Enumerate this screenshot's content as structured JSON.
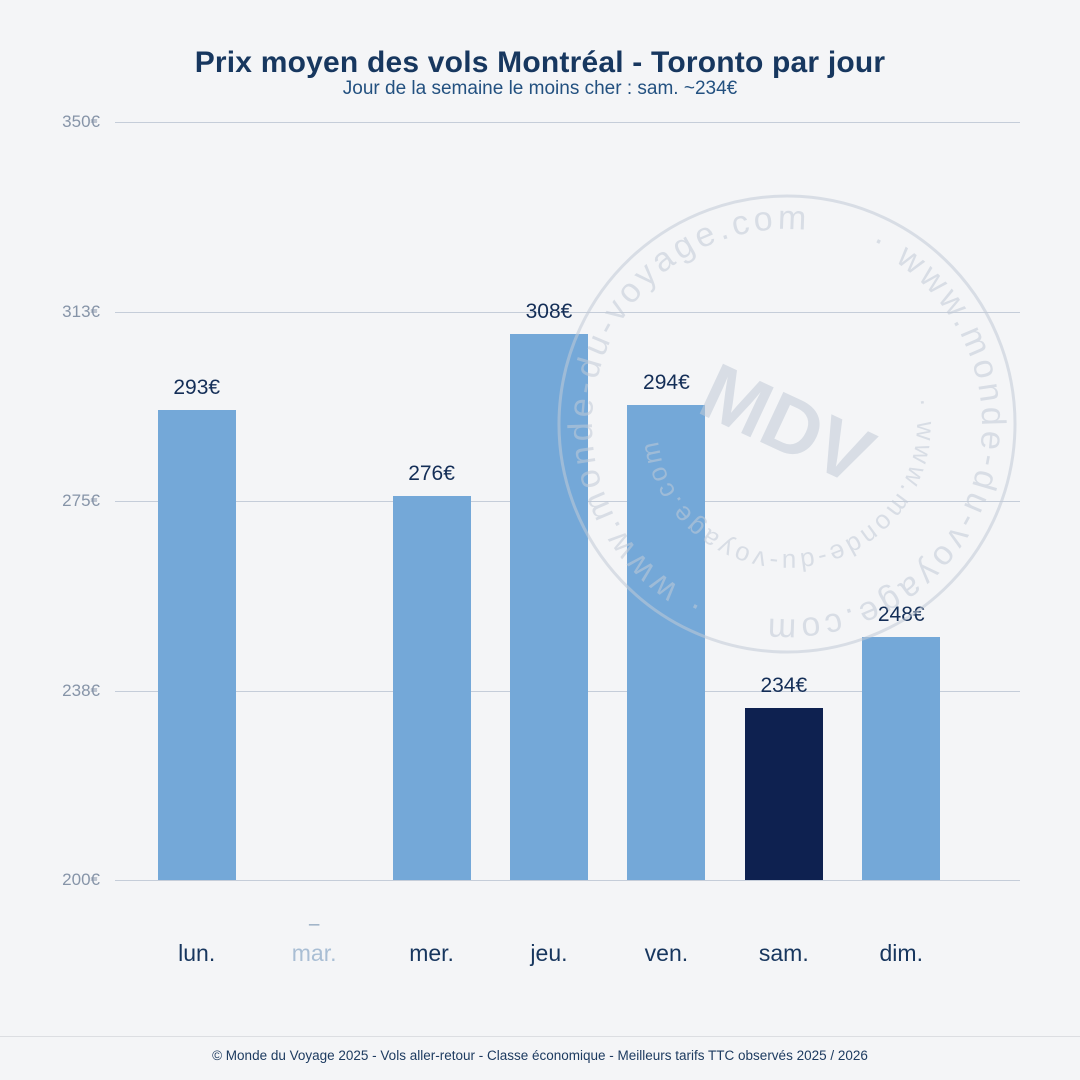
{
  "title": "Prix moyen des vols Montréal - Toronto par jour",
  "subtitle": "Jour de la semaine le moins cher : sam. ~234€",
  "footer": "© Monde du Voyage 2025 - Vols aller-retour - Classe économique - Meilleurs tarifs TTC observés 2025 / 2026",
  "watermark": {
    "ring_text": "· www.monde-du-voyage.com ",
    "center_text": "MDV"
  },
  "colors": {
    "background": "#f4f5f7",
    "bar": "#74a8d8",
    "bar_highlight": "#0e2150",
    "title": "#17375f",
    "grid": "#c5cdd9",
    "axis_label": "#8694a8",
    "muted_label": "#a9bed4"
  },
  "chart_data": {
    "type": "bar",
    "title": "Prix moyen des vols Montréal - Toronto par jour",
    "subtitle": "Jour de la semaine le moins cher : sam. ~234€",
    "categories": [
      "lun.",
      "mar.",
      "mer.",
      "jeu.",
      "ven.",
      "sam.",
      "dim."
    ],
    "values": [
      293,
      null,
      276,
      308,
      294,
      234,
      248
    ],
    "labels": [
      "293€",
      "–",
      "276€",
      "308€",
      "294€",
      "234€",
      "248€"
    ],
    "highlight_index": 5,
    "xlabel": "",
    "ylabel": "",
    "ylim": [
      200,
      350
    ],
    "yticks": [
      200,
      238,
      275,
      313,
      350
    ],
    "ytick_labels": [
      "200€",
      "238€",
      "275€",
      "313€",
      "350€"
    ],
    "grid": true,
    "legend": false
  }
}
